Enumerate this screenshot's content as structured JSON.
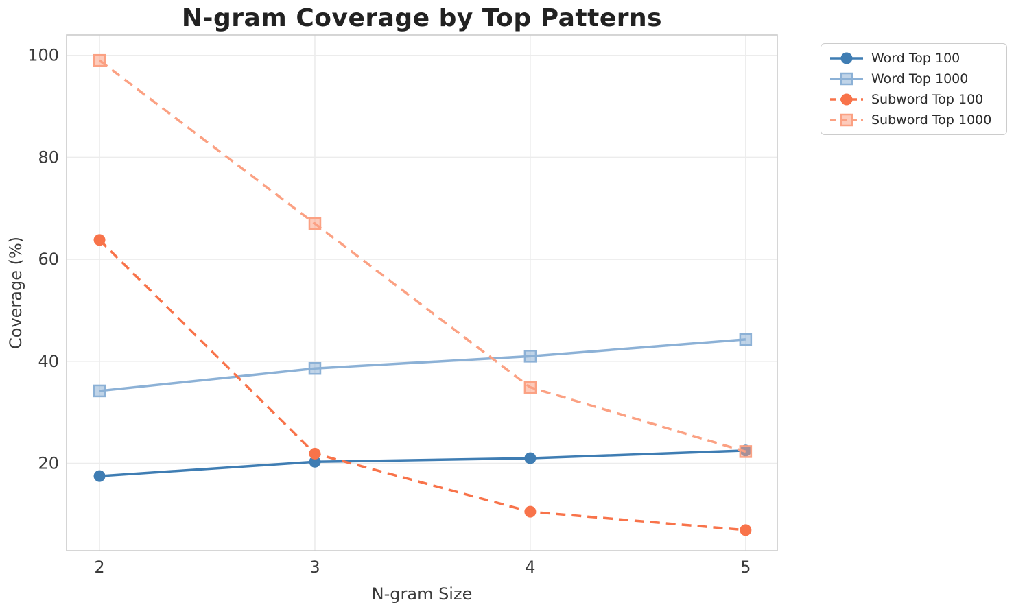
{
  "title": "N-gram Coverage by Top Patterns",
  "chart_data": {
    "type": "line",
    "title": "N-gram Coverage by Top Patterns",
    "xlabel": "N-gram Size",
    "ylabel": "Coverage (%)",
    "x": [
      2,
      3,
      4,
      5
    ],
    "xticks": [
      "2",
      "3",
      "4",
      "5"
    ],
    "yticks": [
      "20",
      "40",
      "60",
      "80",
      "100"
    ],
    "ytick_values": [
      20,
      40,
      60,
      80,
      100
    ],
    "xlim": [
      1.847,
      5.147
    ],
    "ylim": [
      2.85,
      104.0
    ],
    "grid": true,
    "legend_position": "outside-top-right",
    "series": [
      {
        "name": "Word Top 100",
        "values": [
          17.5,
          20.3,
          21.0,
          22.5
        ],
        "color": "#3F7DB3",
        "marker": "circle",
        "line_style": "solid"
      },
      {
        "name": "Word Top 1000",
        "values": [
          34.2,
          38.6,
          41.0,
          44.3
        ],
        "color": "#8CB1D6",
        "marker": "square",
        "line_style": "solid"
      },
      {
        "name": "Subword Top 100",
        "values": [
          63.8,
          21.9,
          10.5,
          6.9
        ],
        "color": "#F8734A",
        "marker": "circle",
        "line_style": "dashed"
      },
      {
        "name": "Subword Top 1000",
        "values": [
          99.0,
          67.0,
          34.9,
          22.3
        ],
        "color": "#FBA183",
        "marker": "square",
        "line_style": "dashed"
      }
    ],
    "colors": {
      "grid": "#ECECEC",
      "spine": "#CBCBCB",
      "tick_text": "#3B3B3B",
      "title_text": "#222222",
      "legend_border": "#CCCCCC",
      "legend_background": "#FFFFFF"
    }
  }
}
